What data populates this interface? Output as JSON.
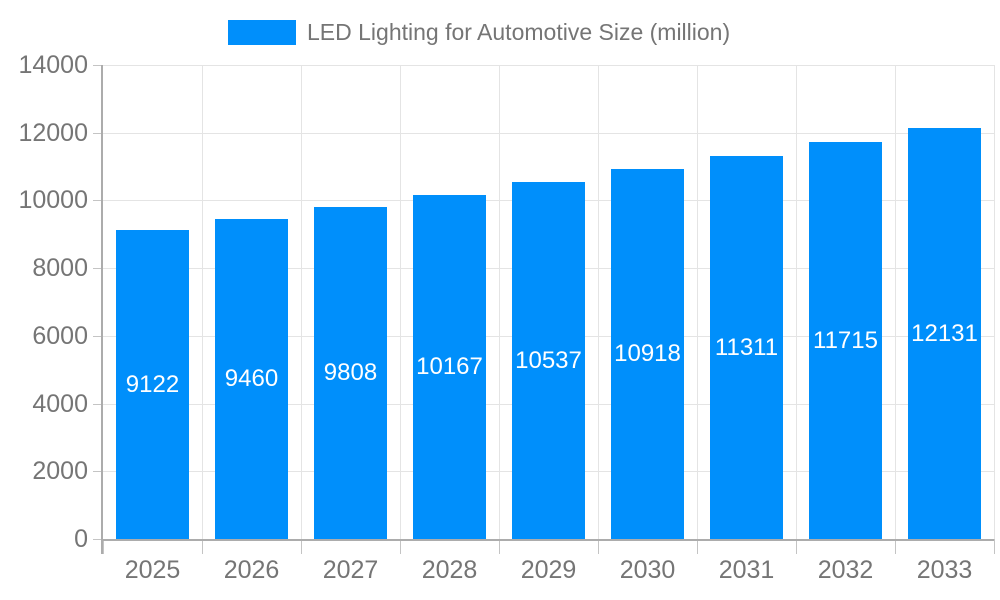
{
  "legend": {
    "position": "top"
  },
  "chart_data": {
    "type": "bar",
    "title": "LED Lighting for Automotive Size (million)",
    "series_name": "LED Lighting for Automotive Size (million)",
    "categories": [
      "2025",
      "2026",
      "2027",
      "2028",
      "2029",
      "2030",
      "2031",
      "2032",
      "2033"
    ],
    "values": [
      9122,
      9460,
      9808,
      10167,
      10537,
      10918,
      11311,
      11715,
      12131
    ],
    "xlabel": "",
    "ylabel": "",
    "ylim": [
      0,
      14000
    ],
    "yticks": [
      0,
      2000,
      4000,
      6000,
      8000,
      10000,
      12000,
      14000
    ],
    "grid": true,
    "legend_position": "top",
    "data_labels": "inside-center",
    "colors": {
      "bar": "#008FFB",
      "bar_label_text": "#ffffff",
      "axis_text": "#757575",
      "legend_text": "#757575",
      "gridline": "#e4e4e4",
      "axis_line": "#acacac",
      "tick": "#c4c4c4",
      "background": "#ffffff"
    }
  }
}
